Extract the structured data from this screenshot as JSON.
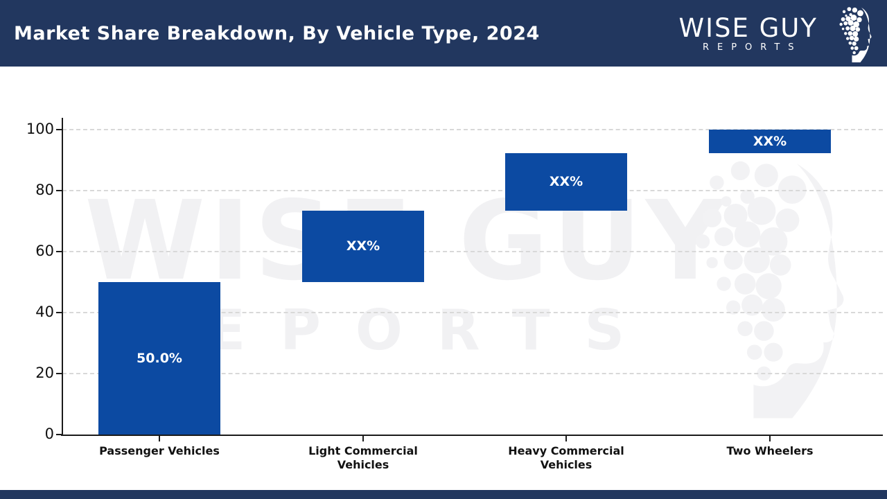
{
  "header": {
    "title": "Market Share Breakdown, By Vehicle Type, 2024",
    "logo": {
      "line1": "WISE GUY",
      "line2": "REPORTS"
    }
  },
  "watermark": {
    "line1": "WISE GUY",
    "line2": "REPORTS"
  },
  "colors": {
    "header_bg": "#22375f",
    "footer_bg": "#22375f",
    "bar": "#0c4aa2",
    "bar_label": "#ffffff",
    "grid": "#d8d8d8",
    "axis": "#1a1a1a",
    "tick_label": "#111111",
    "watermark": "#f1f1f3"
  },
  "chart_data": {
    "type": "bar",
    "subtype": "waterfall",
    "title": "Market Share Breakdown, By Vehicle Type, 2024",
    "categories": [
      "Passenger Vehicles",
      "Light Commercial Vehicles",
      "Heavy Commercial Vehicles",
      "Two Wheelers"
    ],
    "category_lines": [
      [
        "Passenger Vehicles"
      ],
      [
        "Light Commercial",
        "Vehicles"
      ],
      [
        "Heavy Commercial",
        "Vehicles"
      ],
      [
        "Two Wheelers"
      ]
    ],
    "segments": [
      {
        "category": "Passenger Vehicles",
        "start": 0,
        "end": 50,
        "label": "50.0%",
        "estimated_value": 50.0
      },
      {
        "category": "Light Commercial Vehicles",
        "start": 50,
        "end": 73.5,
        "label": "XX%",
        "estimated_value": 23.5
      },
      {
        "category": "Heavy Commercial Vehicles",
        "start": 73.5,
        "end": 92.3,
        "label": "XX%",
        "estimated_value": 18.8
      },
      {
        "category": "Two Wheelers",
        "start": 92.3,
        "end": 100,
        "label": "XX%",
        "estimated_value": 7.7
      }
    ],
    "ylim": [
      0,
      100
    ],
    "yticks": [
      0,
      20,
      40,
      60,
      80,
      100
    ],
    "grid": "horizontal-dashed",
    "legend": "none"
  }
}
